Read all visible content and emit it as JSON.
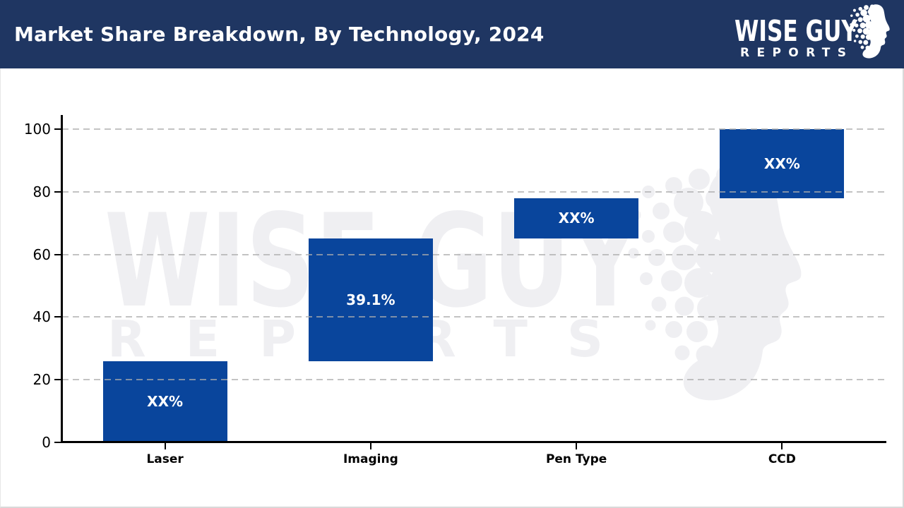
{
  "header": {
    "title": "Market Share Breakdown, By Technology, 2024",
    "background_color": "#1f3662",
    "logo": {
      "brand_line1": "WISE GUY",
      "brand_line2": "REPORTS"
    }
  },
  "watermark": {
    "line1": "WISE GUY",
    "line2": "REPORTS"
  },
  "chart_data": {
    "type": "bar",
    "variant": "floating_segment_breakdown",
    "title": "Market Share Breakdown, By Technology, 2024",
    "categories": [
      "Laser",
      "Imaging",
      "Pen Type",
      "CCD"
    ],
    "series": [
      {
        "category": "Laser",
        "segment_start": 0,
        "segment_end": 26,
        "share_value": 26,
        "label": "XX%"
      },
      {
        "category": "Imaging",
        "segment_start": 26,
        "segment_end": 65.1,
        "share_value": 39.1,
        "label": "39.1%"
      },
      {
        "category": "Pen Type",
        "segment_start": 65.1,
        "segment_end": 78,
        "share_value": 12.9,
        "label": "XX%"
      },
      {
        "category": "CCD",
        "segment_start": 78,
        "segment_end": 100,
        "share_value": 22,
        "label": "XX%"
      }
    ],
    "xlabel": "",
    "ylabel": "",
    "yticks": [
      0,
      20,
      40,
      60,
      80,
      100
    ],
    "ylim": [
      0,
      104.5
    ],
    "grid": "horizontal-dashed",
    "legend": "none",
    "bar_color": "#09459c",
    "bar_label_color": "#ffffff",
    "axis_color": "#000000"
  }
}
